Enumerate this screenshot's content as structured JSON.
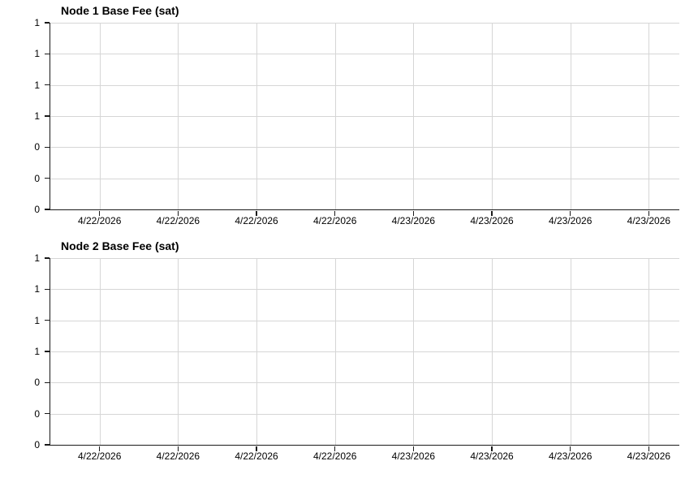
{
  "page": {
    "background": "#ffffff"
  },
  "colors": {
    "axis": "#1a1a1a",
    "grid": "#d6d6d6",
    "text": "#000000"
  },
  "chart_data": [
    {
      "type": "line",
      "title": "Node 1 Base Fee (sat)",
      "xlabel": "",
      "ylabel": "",
      "ylim": [
        0,
        1
      ],
      "grid": true,
      "legend": false,
      "y_tick_labels": [
        "1",
        "1",
        "1",
        "1",
        "0",
        "0",
        "0"
      ],
      "x_tick_labels": [
        "4/22/2026",
        "4/22/2026",
        "4/22/2026",
        "4/22/2026",
        "4/23/2026",
        "4/23/2026",
        "4/23/2026",
        "4/23/2026"
      ],
      "series": []
    },
    {
      "type": "line",
      "title": "Node 2 Base Fee (sat)",
      "xlabel": "",
      "ylabel": "",
      "ylim": [
        0,
        1
      ],
      "grid": true,
      "legend": false,
      "y_tick_labels": [
        "1",
        "1",
        "1",
        "1",
        "0",
        "0",
        "0"
      ],
      "x_tick_labels": [
        "4/22/2026",
        "4/22/2026",
        "4/22/2026",
        "4/22/2026",
        "4/23/2026",
        "4/23/2026",
        "4/23/2026",
        "4/23/2026"
      ],
      "series": []
    }
  ]
}
